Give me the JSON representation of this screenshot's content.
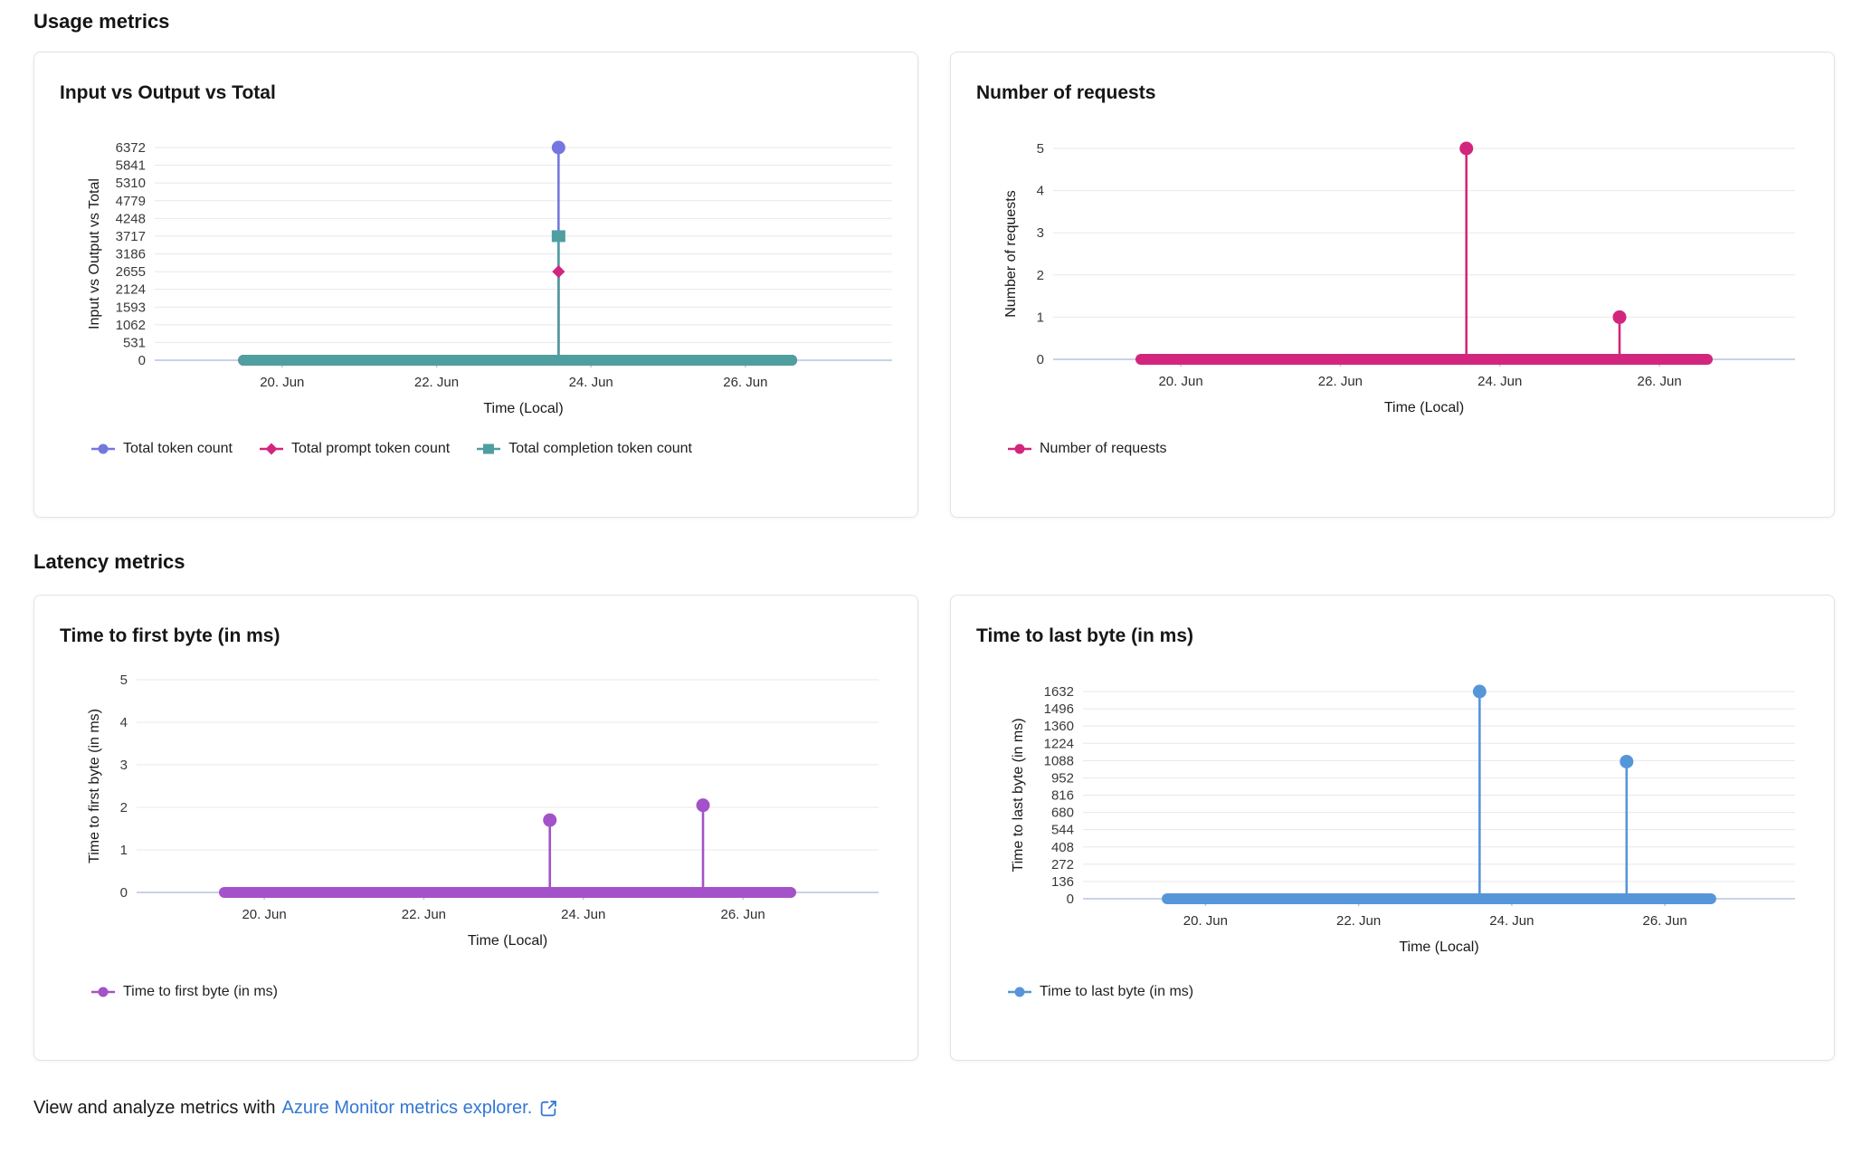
{
  "sections": [
    {
      "title": "Usage metrics"
    },
    {
      "title": "Latency metrics"
    }
  ],
  "footer": {
    "prefix": "View and analyze metrics with",
    "link_text": "Azure Monitor metrics explorer.",
    "link_color": "#3377D4",
    "icon": "external-link-icon"
  },
  "chart_style": {
    "grid_color": "#E8E8E8",
    "zero_line_color": "#C9D2EA",
    "tick_color": "#B7C2DC",
    "tick_label_color": "#2F2F2F",
    "axis_title_color": "#1A1A1A"
  },
  "chart_data": [
    {
      "type": "line",
      "title": "Input vs Output vs Total",
      "xlabel": "Time (Local)",
      "ylabel": "Input vs Output vs Total",
      "x_domain": [
        18.35,
        27.9
      ],
      "x_ticks": [
        {
          "value": 20,
          "label": "20. Jun"
        },
        {
          "value": 22,
          "label": "22. Jun"
        },
        {
          "value": 24,
          "label": "24. Jun"
        },
        {
          "value": 26,
          "label": "26. Jun"
        }
      ],
      "ylim": [
        0,
        6372
      ],
      "y_ticks": [
        0,
        531,
        1062,
        1593,
        2124,
        2655,
        3186,
        3717,
        4248,
        4779,
        5310,
        5841,
        6372
      ],
      "grid": true,
      "legend_position": "bottom-left",
      "series": [
        {
          "name": "Total token count",
          "color": "#7477E0",
          "marker": "circle",
          "baseline": {
            "x_start": 19.5,
            "x_end": 26.6,
            "y": 0
          },
          "spikes": [
            {
              "x": 23.58,
              "y": 6372
            }
          ]
        },
        {
          "name": "Total prompt token count",
          "color": "#D2267E",
          "marker": "diamond",
          "baseline": {
            "x_start": 19.5,
            "x_end": 26.6,
            "y": 0
          },
          "spikes": [
            {
              "x": 23.58,
              "y": 2655
            }
          ]
        },
        {
          "name": "Total completion token count",
          "color": "#4F9EA0",
          "marker": "square",
          "baseline": {
            "x_start": 19.5,
            "x_end": 26.6,
            "y": 0
          },
          "spikes": [
            {
              "x": 23.58,
              "y": 3717
            }
          ]
        }
      ]
    },
    {
      "type": "line",
      "title": "Number of requests",
      "xlabel": "Time (Local)",
      "ylabel": "Number of requests",
      "x_domain": [
        18.4,
        27.7
      ],
      "x_ticks": [
        {
          "value": 20,
          "label": "20. Jun"
        },
        {
          "value": 22,
          "label": "22. Jun"
        },
        {
          "value": 24,
          "label": "24. Jun"
        },
        {
          "value": 26,
          "label": "26. Jun"
        }
      ],
      "ylim": [
        0,
        5
      ],
      "y_ticks": [
        0,
        1,
        2,
        3,
        4,
        5
      ],
      "grid": true,
      "legend_position": "bottom-left",
      "series": [
        {
          "name": "Number of requests",
          "color": "#D2267E",
          "marker": "circle",
          "baseline": {
            "x_start": 19.5,
            "x_end": 26.6,
            "y": 0
          },
          "spikes": [
            {
              "x": 23.58,
              "y": 5
            },
            {
              "x": 25.5,
              "y": 1
            }
          ]
        }
      ]
    },
    {
      "type": "line",
      "title": "Time to first byte (in ms)",
      "xlabel": "Time (Local)",
      "ylabel": "Time to first byte (in ms)",
      "x_domain": [
        18.4,
        27.7
      ],
      "x_ticks": [
        {
          "value": 20,
          "label": "20. Jun"
        },
        {
          "value": 22,
          "label": "22. Jun"
        },
        {
          "value": 24,
          "label": "24. Jun"
        },
        {
          "value": 26,
          "label": "26. Jun"
        }
      ],
      "ylim": [
        0,
        5
      ],
      "y_ticks": [
        0,
        1,
        2,
        3,
        4,
        5
      ],
      "grid": true,
      "legend_position": "bottom-left",
      "series": [
        {
          "name": "Time to first byte (in ms)",
          "color": "#A452C9",
          "marker": "circle",
          "baseline": {
            "x_start": 19.5,
            "x_end": 26.6,
            "y": 0
          },
          "spikes": [
            {
              "x": 23.58,
              "y": 1.7
            },
            {
              "x": 25.5,
              "y": 2.05
            }
          ]
        }
      ]
    },
    {
      "type": "line",
      "title": "Time to last byte (in ms)",
      "xlabel": "Time (Local)",
      "ylabel": "Time to last byte (in ms)",
      "x_domain": [
        18.4,
        27.7
      ],
      "x_ticks": [
        {
          "value": 20,
          "label": "20. Jun"
        },
        {
          "value": 22,
          "label": "22. Jun"
        },
        {
          "value": 24,
          "label": "24. Jun"
        },
        {
          "value": 26,
          "label": "26. Jun"
        }
      ],
      "ylim": [
        0,
        1632
      ],
      "y_ticks": [
        0,
        136,
        272,
        408,
        544,
        680,
        816,
        952,
        1088,
        1224,
        1360,
        1496,
        1632
      ],
      "grid": true,
      "legend_position": "bottom-left",
      "series": [
        {
          "name": "Time to last byte (in ms)",
          "color": "#5696D8",
          "marker": "circle",
          "baseline": {
            "x_start": 19.5,
            "x_end": 26.6,
            "y": 0
          },
          "spikes": [
            {
              "x": 23.58,
              "y": 1632
            },
            {
              "x": 25.5,
              "y": 1080
            }
          ]
        }
      ]
    }
  ]
}
